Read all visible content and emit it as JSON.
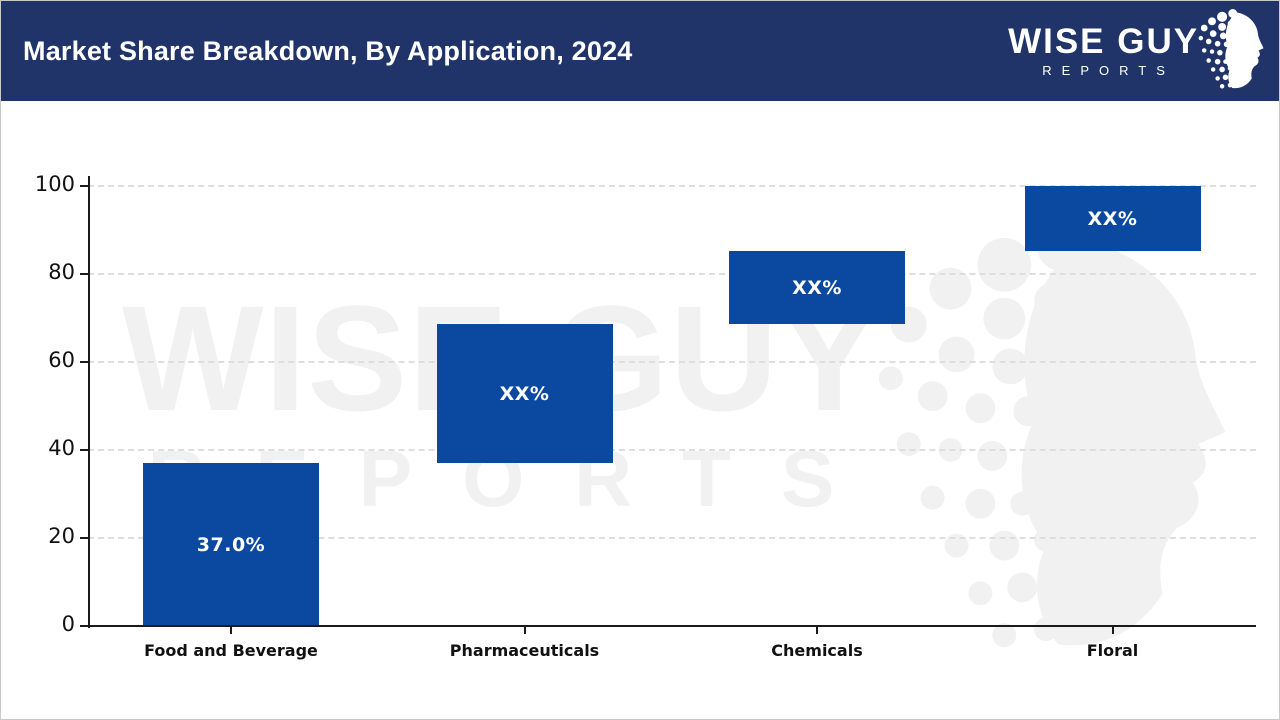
{
  "header": {
    "title": "Market Share Breakdown, By Application, 2024",
    "background_color": "#20346a"
  },
  "logo": {
    "line1": "WISE GUY",
    "line2": "REPORTS",
    "icon": "dotted-head-profile-icon"
  },
  "watermark": {
    "line1": "WISE GUY",
    "line2": "REPORTS",
    "icon": "dotted-head-profile-icon"
  },
  "chart_data": {
    "type": "bar",
    "subtype": "floating-waterfall",
    "title": "Market Share Breakdown, By Application, 2024",
    "categories": [
      "Food and Beverage",
      "Pharmaceuticals",
      "Chemicals",
      "Floral"
    ],
    "segments": [
      {
        "category": "Food and Beverage",
        "start": 0,
        "end": 37,
        "label": "37.0%"
      },
      {
        "category": "Pharmaceuticals",
        "start": 37,
        "end": 68.6,
        "label": "XX%"
      },
      {
        "category": "Chemicals",
        "start": 68.6,
        "end": 85.2,
        "label": "XX%"
      },
      {
        "category": "Floral",
        "start": 85.2,
        "end": 100,
        "label": "XX%"
      }
    ],
    "xlabel": "",
    "ylabel": "",
    "ylim": [
      0,
      100
    ],
    "yticks": [
      0,
      20,
      40,
      60,
      80,
      100
    ],
    "grid": "horizontal-dashed",
    "legend": "none",
    "bar_color": "#0b49a0",
    "bar_label_color": "#ffffff"
  }
}
